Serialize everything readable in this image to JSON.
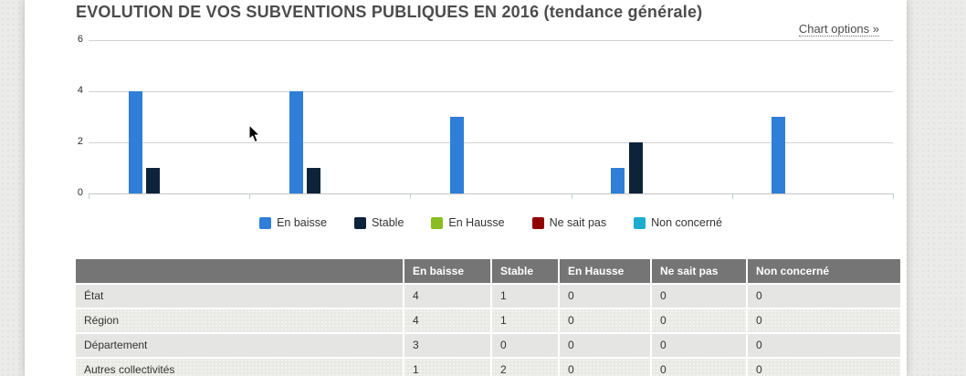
{
  "header": {
    "title": "EVOLUTION DE VOS SUBVENTIONS PUBLIQUES EN 2016 (tendance générale)",
    "chart_options_label": "Chart options »"
  },
  "chart_data": {
    "type": "bar",
    "title": "EVOLUTION DE VOS SUBVENTIONS PUBLIQUES EN 2016 (tendance générale)",
    "categories": [
      "État",
      "Région",
      "Département",
      "Autres collectivités",
      ""
    ],
    "series": [
      {
        "name": "En baisse",
        "color": "#2f7ed8",
        "values": [
          4,
          4,
          3,
          1,
          3
        ]
      },
      {
        "name": "Stable",
        "color": "#0d233a",
        "values": [
          1,
          1,
          0,
          2,
          0
        ]
      },
      {
        "name": "En Hausse",
        "color": "#8bbc21",
        "values": [
          0,
          0,
          0,
          0,
          0
        ]
      },
      {
        "name": "Ne sait pas",
        "color": "#910000",
        "values": [
          0,
          0,
          0,
          0,
          0
        ]
      },
      {
        "name": "Non concerné",
        "color": "#1aadce",
        "values": [
          0,
          0,
          0,
          0,
          0
        ]
      }
    ],
    "ylim": [
      0,
      6
    ],
    "yticks": [
      0,
      2,
      4,
      6
    ],
    "grid": true,
    "legend_position": "bottom",
    "x_tick_labels_visible": false
  },
  "table": {
    "columns": [
      "",
      "En baisse",
      "Stable",
      "En Hausse",
      "Ne sait pas",
      "Non concerné"
    ],
    "rows": [
      {
        "label": "État",
        "values": [
          "4",
          "1",
          "0",
          "0",
          "0"
        ]
      },
      {
        "label": "Région",
        "values": [
          "4",
          "1",
          "0",
          "0",
          "0"
        ]
      },
      {
        "label": "Département",
        "values": [
          "3",
          "0",
          "0",
          "0",
          "0"
        ]
      },
      {
        "label": "Autres collectivités",
        "values": [
          "1",
          "2",
          "0",
          "0",
          "0"
        ]
      }
    ]
  },
  "colors": {
    "en_baisse": "#2f7ed8",
    "stable": "#0d233a",
    "en_hausse": "#8bbc21",
    "ne_sait_pas": "#910000",
    "non_concerne": "#1aadce",
    "table_header_bg": "#757575"
  }
}
